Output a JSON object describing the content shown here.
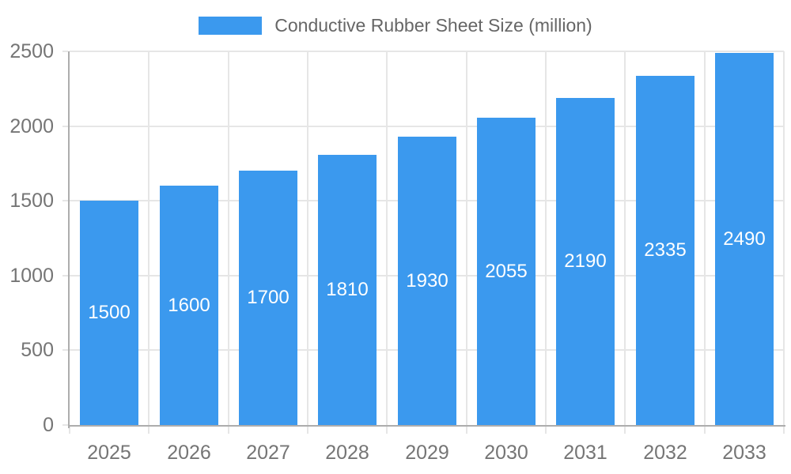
{
  "chart_data": {
    "type": "bar",
    "title": "Conductive Rubber Sheet Size (million)",
    "legend": {
      "label": "Conductive Rubber Sheet Size (million)",
      "position": "top"
    },
    "categories": [
      "2025",
      "2026",
      "2027",
      "2028",
      "2029",
      "2030",
      "2031",
      "2032",
      "2033"
    ],
    "values": [
      1500,
      1600,
      1700,
      1810,
      1930,
      2055,
      2190,
      2335,
      2490
    ],
    "xlabel": "",
    "ylabel": "",
    "ylim": [
      0,
      2500
    ],
    "yticks": [
      0,
      500,
      1000,
      1500,
      2000,
      2500
    ],
    "grid": true,
    "bar_labels_inside": true,
    "colors": {
      "bar": "#3b99ee",
      "bar_label": "#ffffff",
      "axis_line": "#adadad",
      "gridline": "#e6e6e6",
      "tick_label": "#757575",
      "legend_text": "#666666",
      "background": "#ffffff"
    }
  }
}
